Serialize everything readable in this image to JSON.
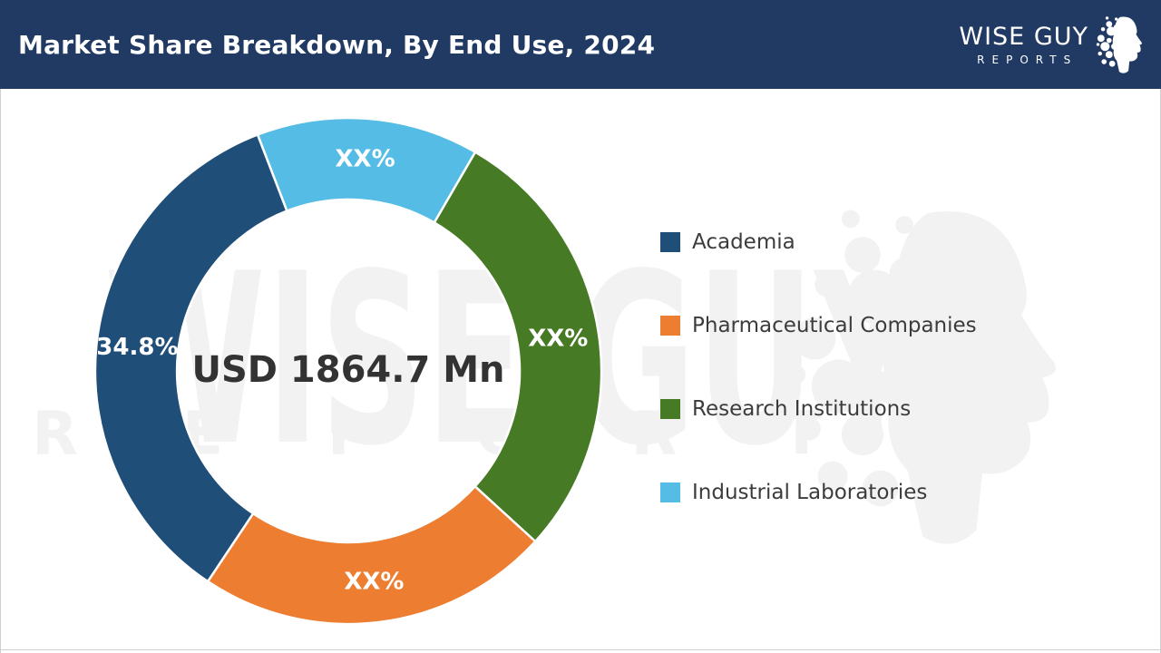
{
  "header": {
    "title": "Market Share Breakdown, By End Use, 2024",
    "logo": {
      "name": "WISE GUY",
      "tagline": "REPORTS"
    }
  },
  "watermark": {
    "brand": "WISE GUY",
    "tagline": "R E P O R T S"
  },
  "colors": {
    "header_background": "#203A64",
    "center_text": "#333333",
    "legend_text": "#3C3C3C",
    "segment_label_text": "#FFFFFF",
    "watermark": "#F2F2F2",
    "hairline": "#CFCFCF"
  },
  "chart_data": {
    "type": "pie",
    "subtype": "donut",
    "title": "Market Share Breakdown, By End Use, 2024",
    "center_label": "USD 1864.7 Mn",
    "units": "percent of market share",
    "legend_position": "right",
    "start_angle_clockwise_from_top_deg": 339,
    "segments": [
      {
        "label": "Academia",
        "color": "#1F4E79",
        "percent": 34.8,
        "display_value": "34.8%"
      },
      {
        "label": "Pharmaceutical Companies",
        "color": "#ED7D31",
        "percent": 22.6,
        "display_value": "XX%"
      },
      {
        "label": "Research Institutions",
        "color": "#467A24",
        "percent": 28.4,
        "display_value": "XX%"
      },
      {
        "label": "Industrial Laboratories",
        "color": "#55BDE5",
        "percent": 14.2,
        "display_value": "XX%"
      }
    ]
  }
}
